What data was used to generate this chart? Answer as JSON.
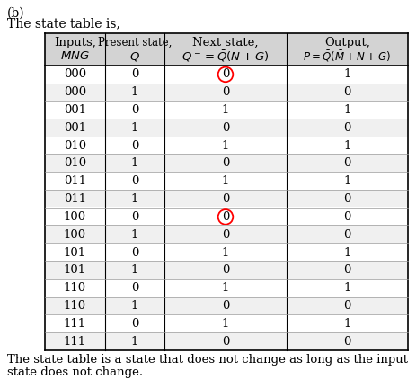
{
  "title_b": "(b)",
  "subtitle": "The state table is,",
  "footer_line1": "The state table is a state that does not change as long as the input",
  "footer_line2": "state does not change.",
  "rows": [
    [
      "000",
      "0",
      "0",
      "1"
    ],
    [
      "000",
      "1",
      "0",
      "0"
    ],
    [
      "001",
      "0",
      "1",
      "1"
    ],
    [
      "001",
      "1",
      "0",
      "0"
    ],
    [
      "010",
      "0",
      "1",
      "1"
    ],
    [
      "010",
      "1",
      "0",
      "0"
    ],
    [
      "011",
      "0",
      "1",
      "1"
    ],
    [
      "011",
      "1",
      "0",
      "0"
    ],
    [
      "100",
      "0",
      "0",
      "0"
    ],
    [
      "100",
      "1",
      "0",
      "0"
    ],
    [
      "101",
      "0",
      "1",
      "1"
    ],
    [
      "101",
      "1",
      "0",
      "0"
    ],
    [
      "110",
      "0",
      "1",
      "1"
    ],
    [
      "110",
      "1",
      "0",
      "0"
    ],
    [
      "111",
      "0",
      "1",
      "1"
    ],
    [
      "111",
      "1",
      "0",
      "0"
    ]
  ],
  "circled_cells": [
    [
      0,
      2
    ],
    [
      8,
      2
    ]
  ],
  "background_color": "#ffffff",
  "font_size": 9.5,
  "header_font_size": 9.5
}
